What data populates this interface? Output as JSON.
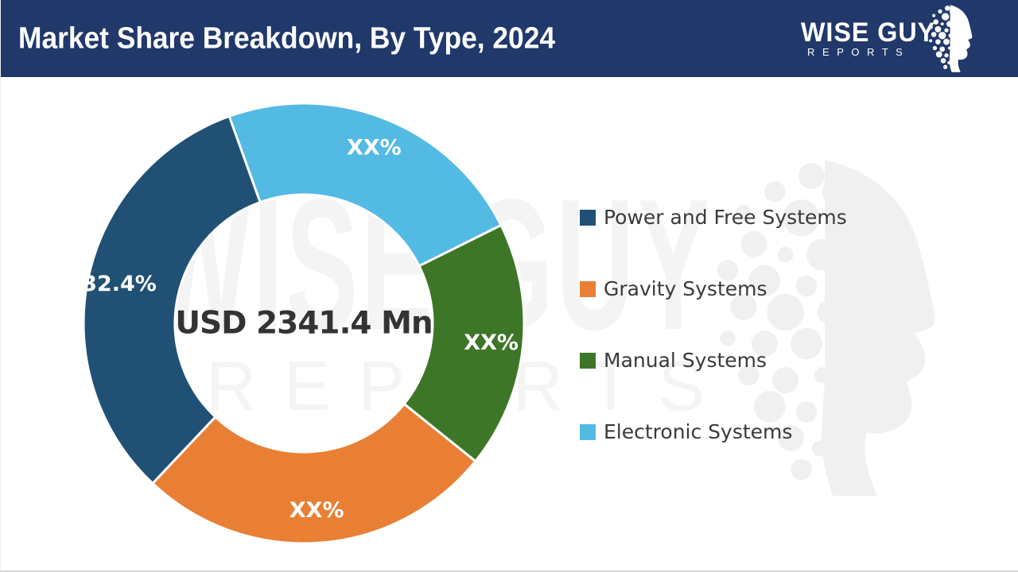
{
  "header": {
    "title": "Market Share Breakdown, By Type, 2024",
    "bg_color": "#21386B",
    "logo": {
      "line1": "WISE GUY",
      "line2": "R E P O R T S"
    }
  },
  "watermark": {
    "line1": "WISE GUY",
    "line2": "R E P O R T S"
  },
  "chart_data": {
    "type": "pie",
    "subtype": "donut",
    "title": "Market Share Breakdown, By Type, 2024",
    "center_label": "USD 2341.4 Mn",
    "start_angle_deg": -19.8,
    "direction": "clockwise",
    "legend_position": "right",
    "separator_color": "#ffffff",
    "segments": [
      {
        "name": "Electronic Systems",
        "label": "XX%",
        "share_pct": 23.1,
        "color": "#53BAE3"
      },
      {
        "name": "Manual Systems",
        "label": "XX%",
        "share_pct": 18.1,
        "color": "#3E7628"
      },
      {
        "name": "Gravity Systems",
        "label": "XX%",
        "share_pct": 26.2,
        "color": "#E97F35"
      },
      {
        "name": "Power and Free Systems",
        "label": "32.4%",
        "share_pct": 32.4,
        "color": "#215075"
      }
    ]
  },
  "legend": {
    "items": [
      {
        "label": "Power and Free Systems",
        "color": "#215075"
      },
      {
        "label": "Gravity Systems",
        "color": "#E97F35"
      },
      {
        "label": "Manual Systems",
        "color": "#3E7628"
      },
      {
        "label": "Electronic Systems",
        "color": "#53BAE3"
      }
    ]
  }
}
